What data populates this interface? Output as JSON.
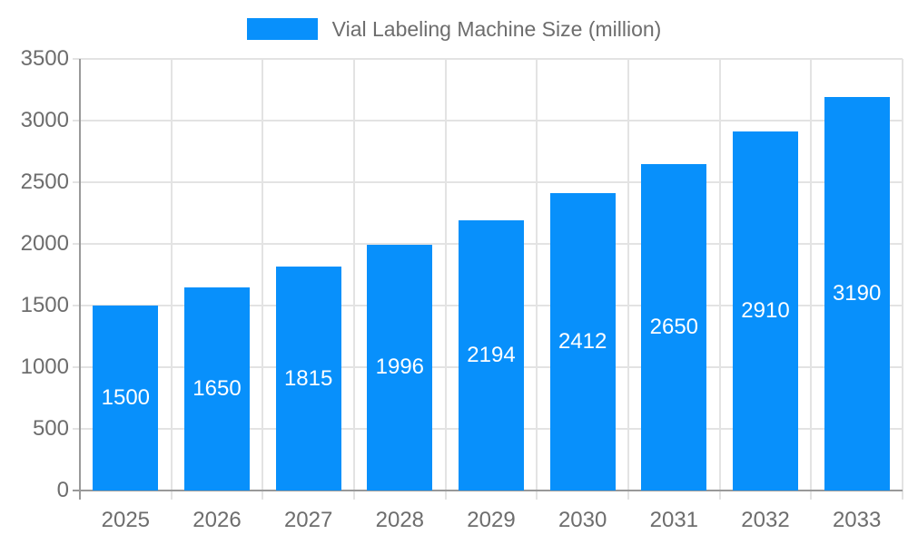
{
  "chart": {
    "legend": {
      "label": "Vial Labeling Machine Size (million)",
      "swatch_color": "#0890fb"
    }
  },
  "chart_data": {
    "type": "bar",
    "title": "",
    "series_label": "Vial Labeling Machine Size (million)",
    "categories": [
      "2025",
      "2026",
      "2027",
      "2028",
      "2029",
      "2030",
      "2031",
      "2032",
      "2033"
    ],
    "values": [
      1500,
      1650,
      1815,
      1996,
      2194,
      2412,
      2650,
      2910,
      3190
    ],
    "xlabel": "",
    "ylabel": "",
    "ylim": [
      0,
      3500
    ],
    "yticks": [
      0,
      500,
      1000,
      1500,
      2000,
      2500,
      3000,
      3500
    ],
    "grid": true,
    "legend_position": "top",
    "value_label_position": "inside-center",
    "colors": {
      "bar": "#0890fb",
      "grid": "#e3e3e3",
      "axis": "#999999",
      "tick_text": "#6d6d6d",
      "legend_text": "#6d6d6d",
      "value_text": "#ffffff",
      "background": "#ffffff"
    }
  }
}
